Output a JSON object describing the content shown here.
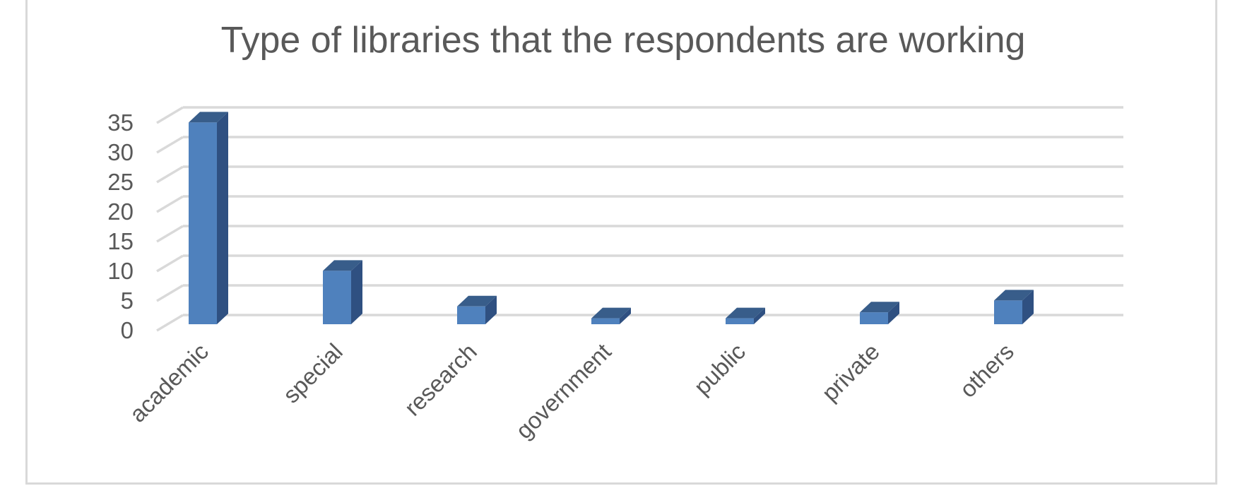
{
  "chart_data": {
    "type": "bar",
    "style": "3d-clustered-column",
    "title": "Type of libraries that the respondents are working",
    "categories": [
      "academic",
      "special",
      "research",
      "government",
      "public",
      "private",
      "others"
    ],
    "values": [
      34,
      9,
      3,
      1,
      1,
      2,
      4
    ],
    "xlabel": "",
    "ylabel": "",
    "ylim": [
      0,
      35
    ],
    "yticks": [
      0,
      5,
      10,
      15,
      20,
      25,
      30,
      35
    ],
    "grid": true,
    "legend": "none",
    "colors": {
      "bar_front": "#4f81bd",
      "bar_side": "#2f5081",
      "bar_top": "#385d8a",
      "gridline": "#d9d9d9",
      "text": "#595959",
      "border": "#d9d9d9"
    }
  }
}
